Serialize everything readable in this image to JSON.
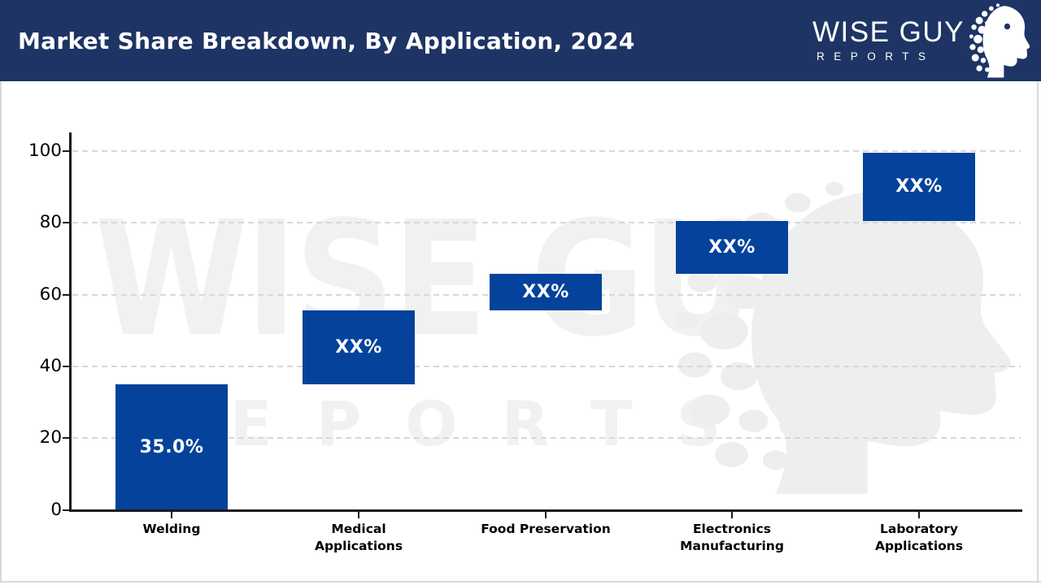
{
  "header": {
    "title": "Market Share Breakdown, By Application, 2024",
    "bg_color": "#1e3464",
    "logo": {
      "brand_top": "WISE GUY",
      "brand_bottom": "REPORTS"
    }
  },
  "watermark": {
    "brand_top": "WISE GUY",
    "brand_bottom": "REPORTS"
  },
  "chart_data": {
    "type": "bar",
    "subtype": "waterfall",
    "title": "Market Share Breakdown, By Application, 2024",
    "categories": [
      "Welding",
      "Medical Applications",
      "Food Preservation",
      "Electronics Manufacturing",
      "Laboratory Applications"
    ],
    "bars": [
      {
        "category": "Welding",
        "lines": [
          "Welding"
        ],
        "value_label": "35.0%",
        "base": 0,
        "top": 35.0
      },
      {
        "category": "Medical Applications",
        "lines": [
          "Medical",
          "Applications"
        ],
        "value_label": "XX%",
        "base": 35.0,
        "top": 55.5
      },
      {
        "category": "Food Preservation",
        "lines": [
          "Food Preservation"
        ],
        "value_label": "XX%",
        "base": 55.5,
        "top": 65.7
      },
      {
        "category": "Electronics Manufacturing",
        "lines": [
          "Electronics",
          "Manufacturing"
        ],
        "value_label": "XX%",
        "base": 65.7,
        "top": 80.6
      },
      {
        "category": "Laboratory Applications",
        "lines": [
          "Laboratory",
          "Applications"
        ],
        "value_label": "XX%",
        "base": 80.6,
        "top": 99.5
      }
    ],
    "y_ticks": [
      0,
      20,
      40,
      60,
      80,
      100
    ],
    "ylim": [
      0,
      105
    ],
    "xlabel": "",
    "ylabel": "",
    "grid": "horizontal-dashed",
    "legend": "none",
    "bar_color": "#04429c",
    "value_label_color": "#ffffff",
    "axis_color": "#1a1a1a",
    "gridline_color": "#d8d8d8"
  }
}
